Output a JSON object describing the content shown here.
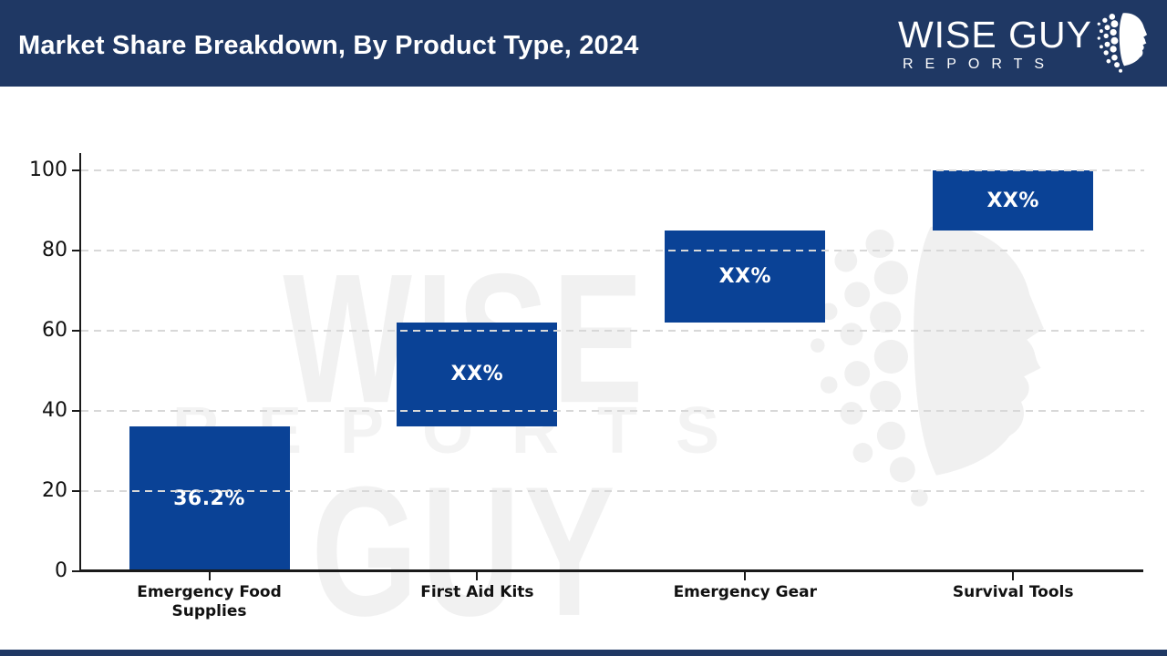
{
  "header": {
    "title": "Market Share Breakdown, By Product Type, 2024",
    "bg_color": "#1f3864",
    "logo": {
      "line1": "WISE GUY",
      "line2": "REPORTS"
    }
  },
  "watermark": {
    "line1": "WISE GUY",
    "line2": "REPORTS"
  },
  "chart_data": {
    "type": "bar",
    "subtype": "waterfall-floating-bars",
    "title": "Market Share Breakdown, By Product Type, 2024",
    "categories": [
      "Emergency Food Supplies",
      "First Aid Kits",
      "Emergency Gear",
      "Survival Tools"
    ],
    "segments": [
      {
        "category": "Emergency Food Supplies",
        "start": 0,
        "end": 36.2,
        "label": "36.2%"
      },
      {
        "category": "First Aid Kits",
        "start": 36.2,
        "end": 62,
        "label": "XX%"
      },
      {
        "category": "Emergency Gear",
        "start": 62,
        "end": 85,
        "label": "XX%"
      },
      {
        "category": "Survival Tools",
        "start": 85,
        "end": 100,
        "label": "XX%"
      }
    ],
    "y_ticks": [
      0,
      20,
      40,
      60,
      80,
      100
    ],
    "ylim": [
      0,
      100
    ],
    "xlabel": "",
    "ylabel": "",
    "grid": "horizontal-dashed-over-bars",
    "legend": "none",
    "bar_color": "#0a4296",
    "bar_label_color": "#ffffff",
    "grid_color": "#d8d8d8",
    "axis_color": "#1a1a1a"
  }
}
